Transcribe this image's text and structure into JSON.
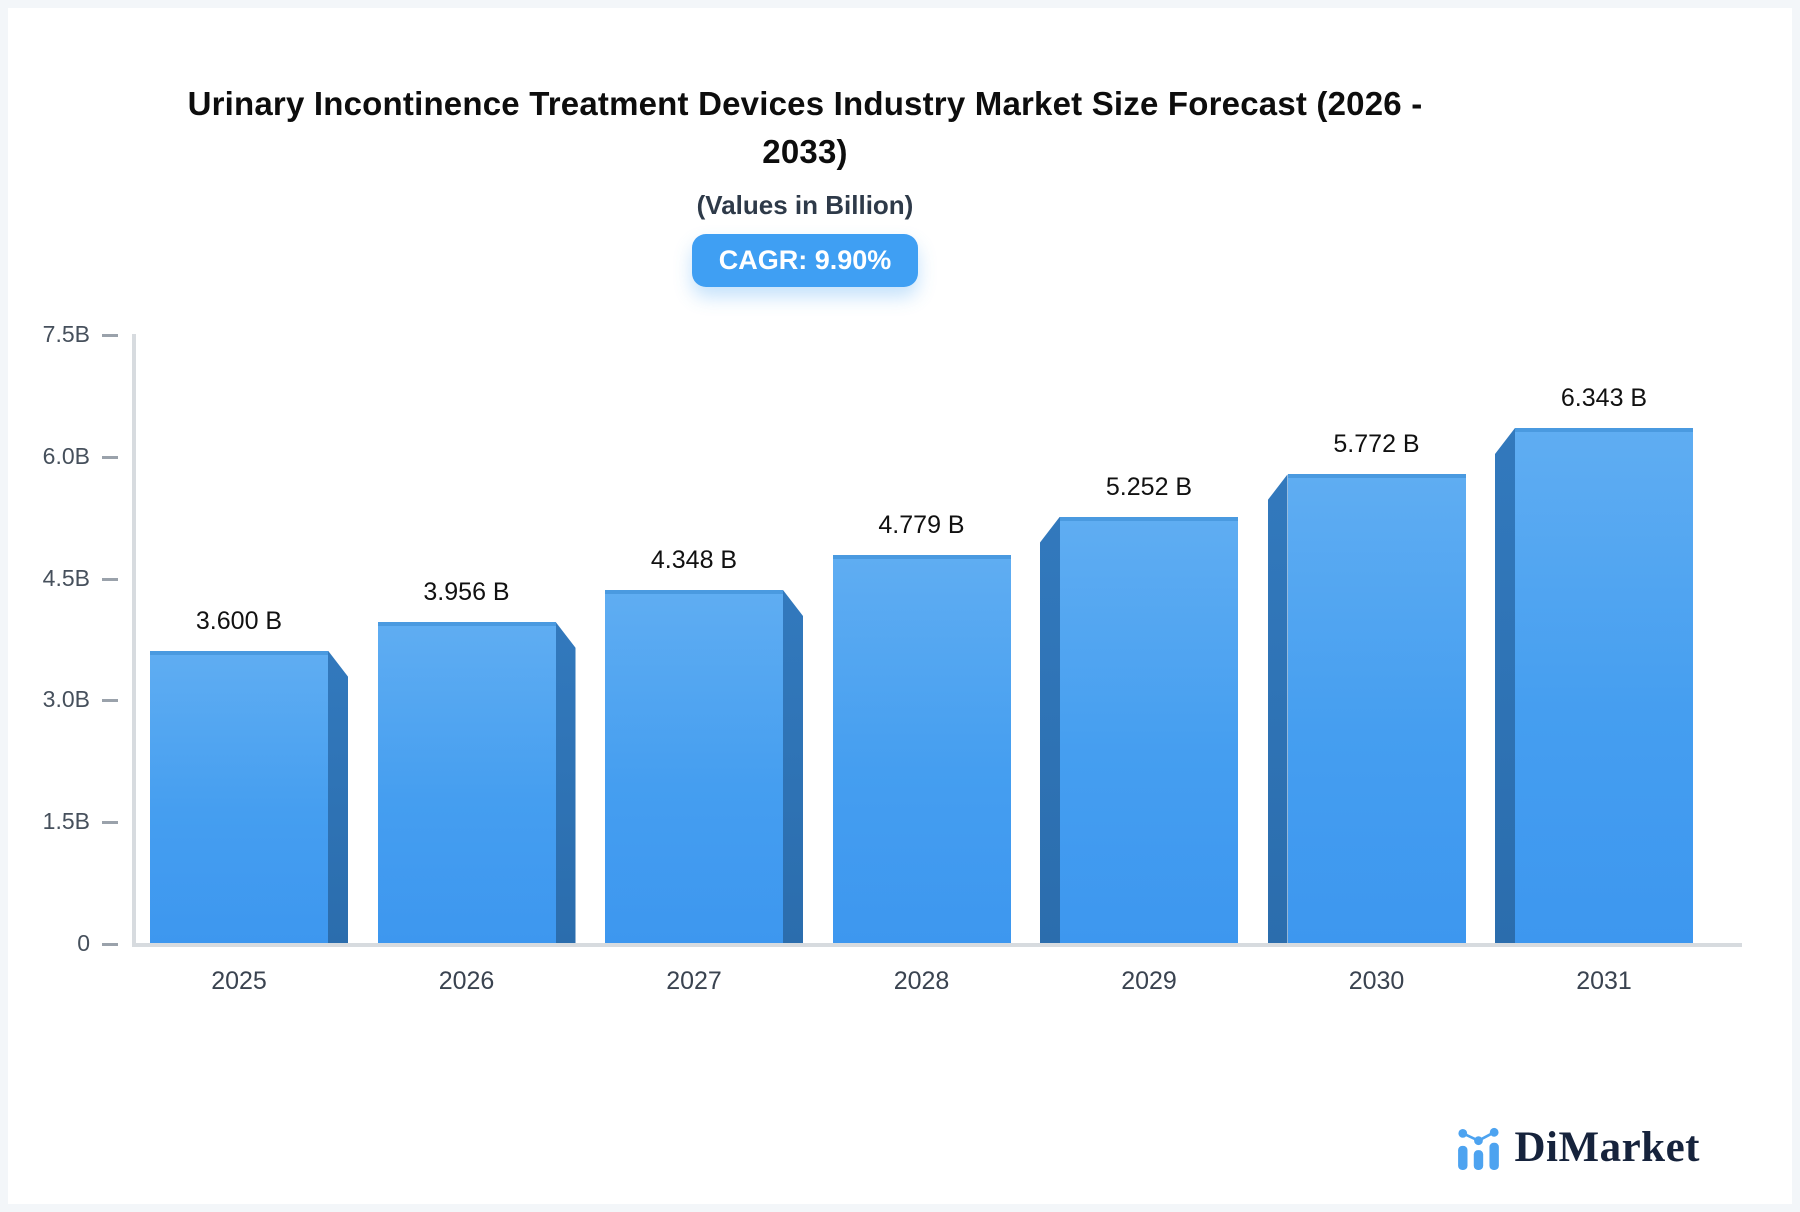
{
  "header": {
    "title_line1": "Urinary Incontinence Treatment Devices Industry Market Size Forecast (2026 -",
    "title_line2": "2033)",
    "subtitle": "(Values in Billion)",
    "cagr_badge": "CAGR: 9.90%"
  },
  "chart_data": {
    "type": "bar",
    "title": "Urinary Incontinence Treatment Devices Industry Market Size Forecast (2026 - 2033)",
    "subtitle": "(Values in Billion)",
    "cagr": "9.90%",
    "categories": [
      "2025",
      "2026",
      "2027",
      "2028",
      "2029",
      "2030",
      "2031"
    ],
    "values": [
      3.6,
      3.956,
      4.348,
      4.779,
      5.252,
      5.772,
      6.343
    ],
    "value_labels": [
      "3.600 B",
      "3.956 B",
      "4.348 B",
      "4.779 B",
      "5.252 B",
      "5.772 B",
      "6.343 B"
    ],
    "ylim": [
      0,
      7.5
    ],
    "y_ticks": [
      {
        "value": 0,
        "label": "0"
      },
      {
        "value": 1.5,
        "label": "1.5B"
      },
      {
        "value": 3.0,
        "label": "3.0B"
      },
      {
        "value": 4.5,
        "label": "4.5B"
      },
      {
        "value": 6.0,
        "label": "6.0B"
      },
      {
        "value": 7.5,
        "label": "7.5B"
      }
    ],
    "grid": false,
    "legend": false,
    "xlabel": "",
    "ylabel": ""
  },
  "logo": {
    "text": "DiMarket",
    "icon": "bar-chart-logo-icon"
  },
  "colors": {
    "bar_top": "#5fadf2",
    "bar_bottom": "#3d97ef",
    "bar_top_edge": "#4a9ae0",
    "bar_side_dark_top": "#3279bd",
    "bar_side_dark_bottom": "#2b6dad",
    "badge_bg": "#3f9ff3",
    "badge_text": "#ffffff",
    "axis_line": "#d7dbdf",
    "tick": "#9aa2ab",
    "y_label": "#46505c",
    "x_label": "#3a4350",
    "value_label": "#111111",
    "title": "#0d0d0d",
    "subtitle": "#2e3a49",
    "logo_navy": "#16233c",
    "logo_blue": "#4da3f0",
    "page_bg": "#f3f6f9",
    "card_bg": "#ffffff"
  }
}
